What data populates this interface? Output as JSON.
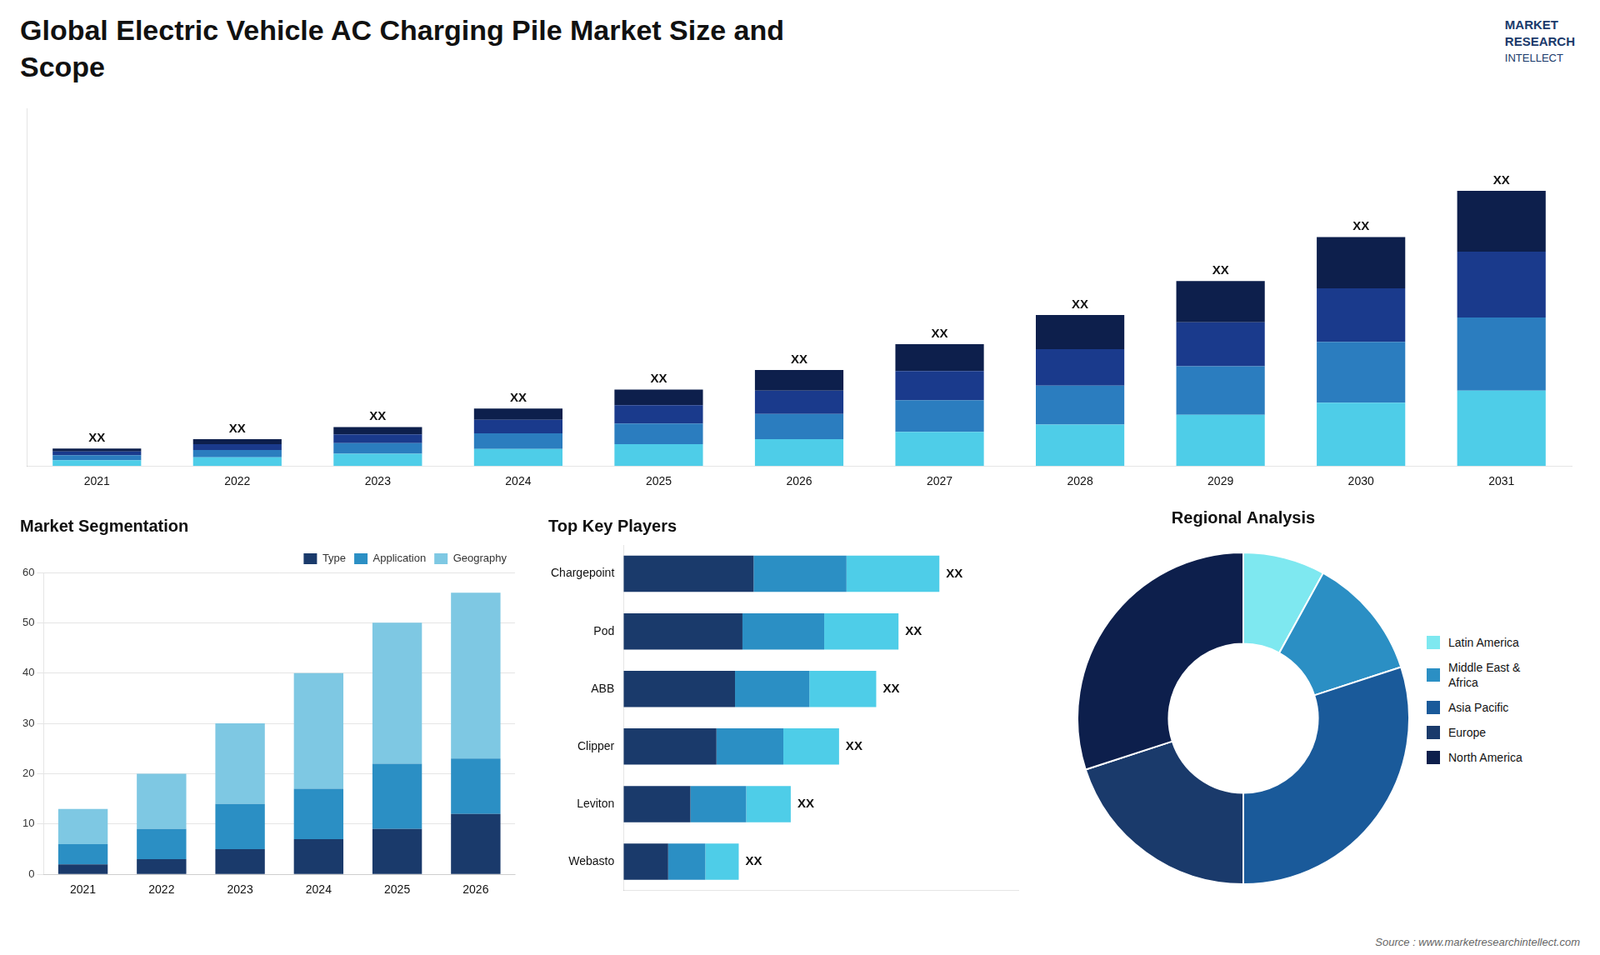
{
  "title": [
    "Global Electric Vehicle AC Charging Pile Market Size and",
    "Scope"
  ],
  "annotations": [
    "MARKET",
    "RESEARCH",
    "INTELLECT",
    "Source : www.marketresearchintellect.com"
  ],
  "chart_data": [
    {
      "type": "bar",
      "stacked": true,
      "categories": [
        "2021",
        "2022",
        "2023",
        "2024",
        "2025",
        "2026",
        "2027",
        "2028",
        "2029",
        "2030",
        "2031"
      ],
      "series": [
        {
          "color": "#4ecde8",
          "values": [
            1.2,
            1.8,
            2.5,
            3.5,
            4.5,
            5.5,
            7.0,
            8.5,
            10.5,
            13.0,
            15.5
          ]
        },
        {
          "color": "#2b7dbf",
          "values": [
            1.0,
            1.5,
            2.2,
            3.2,
            4.2,
            5.2,
            6.5,
            8.0,
            10.0,
            12.5,
            15.0
          ]
        },
        {
          "color": "#1a3a8c",
          "values": [
            0.8,
            1.2,
            1.8,
            2.8,
            3.8,
            4.8,
            6.0,
            7.5,
            9.0,
            11.0,
            13.5
          ]
        },
        {
          "color": "#0d1f4c",
          "values": [
            0.6,
            1.0,
            1.5,
            2.3,
            3.2,
            4.2,
            5.5,
            7.0,
            8.5,
            10.5,
            12.5
          ]
        }
      ],
      "annotations": [
        "XX",
        "XX",
        "XX",
        "XX",
        "XX",
        "XX",
        "XX",
        "XX",
        "XX",
        "XX",
        "XX"
      ],
      "ylim": [
        0,
        73.45
      ],
      "yticks": [],
      "tick_labels": "x",
      "grid": false
    },
    {
      "type": "bar",
      "title": "Market Segmentation",
      "stacked": true,
      "categories": [
        "2021",
        "2022",
        "2023",
        "2024",
        "2025",
        "2026"
      ],
      "series": [
        {
          "name": "Type",
          "color": "#1a3a6b",
          "values": [
            2,
            3,
            5,
            7,
            9,
            12
          ]
        },
        {
          "name": "Application",
          "color": "#2b8fc4",
          "values": [
            4,
            6,
            9,
            10,
            13,
            11
          ]
        },
        {
          "name": "Geography",
          "color": "#7ec8e3",
          "values": [
            7,
            11,
            16,
            23,
            28,
            33
          ]
        }
      ],
      "ylim": [
        0,
        60
      ],
      "yticks": [
        0,
        10,
        20,
        30,
        40,
        50,
        60
      ],
      "grid": true,
      "legend": "upper right"
    },
    {
      "type": "bar",
      "title": "Top Key Players",
      "orientation": "horizontal",
      "stacked": true,
      "categories": [
        "Chargepoint",
        "Pod",
        "ABB",
        "Clipper",
        "Leviton",
        "Webasto"
      ],
      "series": [
        {
          "color": "#1a3a6b",
          "values": [
            3.5,
            3.2,
            3.0,
            2.5,
            1.8,
            1.2
          ]
        },
        {
          "color": "#2b8fc4",
          "values": [
            2.5,
            2.2,
            2.0,
            1.8,
            1.5,
            1.0
          ]
        },
        {
          "color": "#4ecde8",
          "values": [
            2.5,
            2.0,
            1.8,
            1.5,
            1.2,
            0.9
          ]
        }
      ],
      "annotations": [
        "XX",
        "XX",
        "XX",
        "XX",
        "XX",
        "XX"
      ],
      "xlim": [
        0,
        10.625
      ],
      "xticks": [],
      "tick_labels": "y",
      "grid": false
    },
    {
      "type": "doughnut",
      "title": "Regional Analysis",
      "categories": [
        "Latin America",
        "Middle East &\nAfrica",
        "Asia Pacific",
        "Europe",
        "North America"
      ],
      "values": [
        8,
        12,
        30,
        20,
        30
      ],
      "colors": [
        "#7ee8f0",
        "#2b8fc4",
        "#1a5a9a",
        "#1a3a6b",
        "#0d1f4c"
      ],
      "legend": "right"
    }
  ]
}
